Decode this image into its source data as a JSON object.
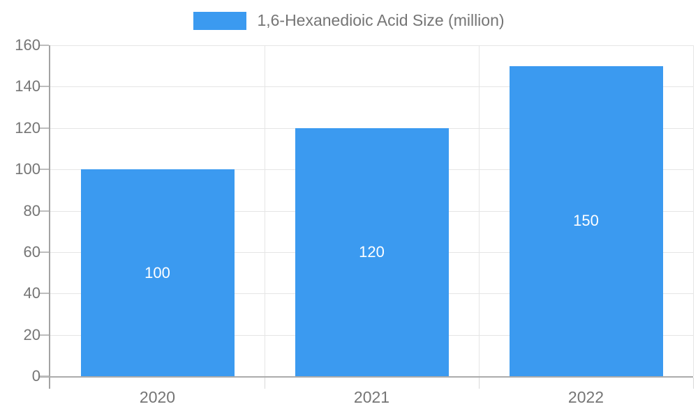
{
  "chart_data": {
    "type": "bar",
    "title": "",
    "legend": "1,6-Hexanedioic Acid Size (million)",
    "legend_position": "top-center",
    "categories": [
      "2020",
      "2021",
      "2022"
    ],
    "series": [
      {
        "name": "1,6-Hexanedioic Acid Size (million)",
        "values": [
          100,
          120,
          150
        ]
      }
    ],
    "bar_value_labels": [
      "100",
      "120",
      "150"
    ],
    "xlabel": "",
    "ylabel": "",
    "ylim": [
      0,
      160
    ],
    "y_ticks": [
      0,
      20,
      40,
      60,
      80,
      100,
      120,
      140,
      160
    ],
    "grid": "on",
    "colors": {
      "bar": "#3b9af0",
      "value_label": "#ffffff",
      "axis_text": "#757575",
      "gridline": "#e5e5e5",
      "axis_line": "#a6a6a6",
      "background": "#ffffff"
    }
  }
}
